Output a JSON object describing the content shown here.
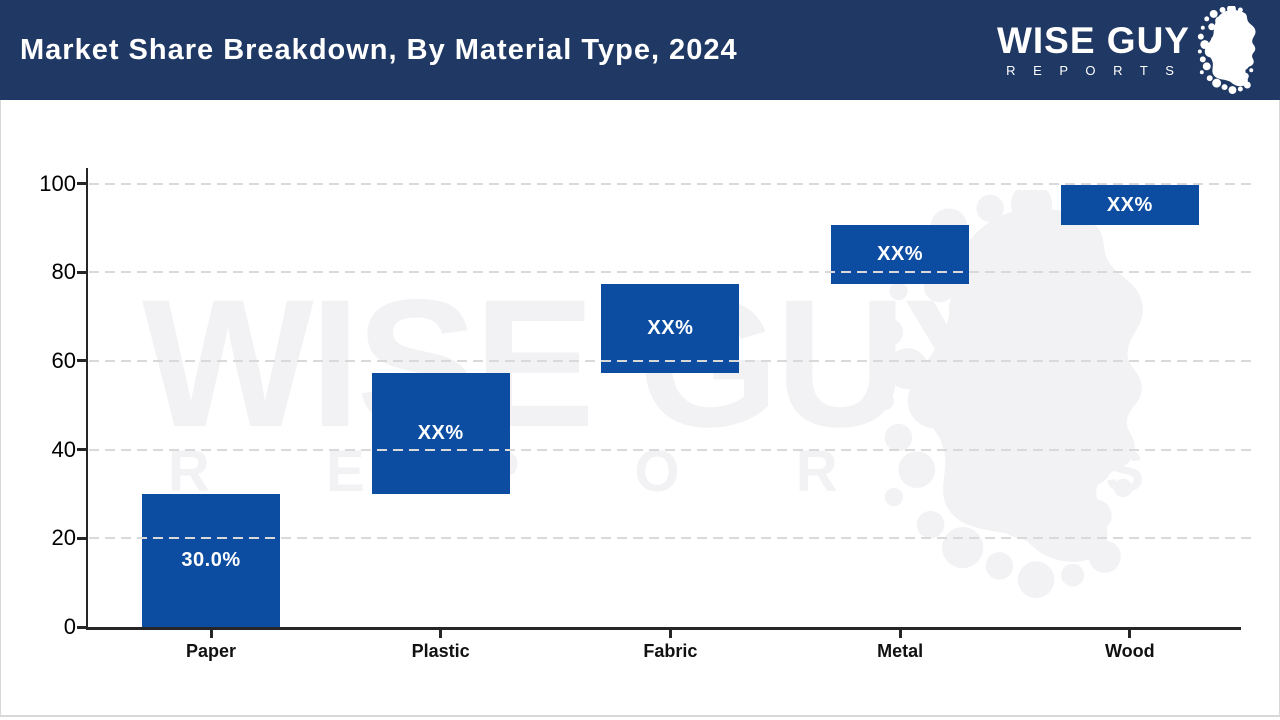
{
  "header": {
    "title": "Market Share Breakdown, By Material Type, 2024",
    "logo": {
      "line1": "WISE GUY",
      "line2": "R E P O R T S"
    }
  },
  "watermark": {
    "line1": "WISE GUY",
    "line2": "R E P O R T S"
  },
  "colors": {
    "header_bg": "#1f3864",
    "bar": "#0c4da2",
    "axis": "#262626",
    "gridline": "#d9d9d9",
    "bar_label_text": "#ffffff",
    "title_text": "#ffffff",
    "watermark": "#f2f2f4"
  },
  "chart_data": {
    "type": "bar",
    "subtype": "waterfall",
    "title": "Market Share Breakdown, By Material Type, 2024",
    "xlabel": "",
    "ylabel": "",
    "categories": [
      "Paper",
      "Plastic",
      "Fabric",
      "Metal",
      "Wood"
    ],
    "segments": [
      {
        "category": "Paper",
        "start": 0,
        "end": 30,
        "label": "30.0%"
      },
      {
        "category": "Plastic",
        "start": 30,
        "end": 57.3,
        "label": "XX%"
      },
      {
        "category": "Fabric",
        "start": 57.3,
        "end": 77.3,
        "label": "XX%"
      },
      {
        "category": "Metal",
        "start": 77.3,
        "end": 90.6,
        "label": "XX%"
      },
      {
        "category": "Wood",
        "start": 90.6,
        "end": 99.6,
        "label": "XX%"
      }
    ],
    "yticks": [
      0,
      20,
      40,
      60,
      80,
      100
    ],
    "ylim": [
      0,
      103
    ],
    "grid": "horizontal-dashed",
    "legend": "none"
  }
}
